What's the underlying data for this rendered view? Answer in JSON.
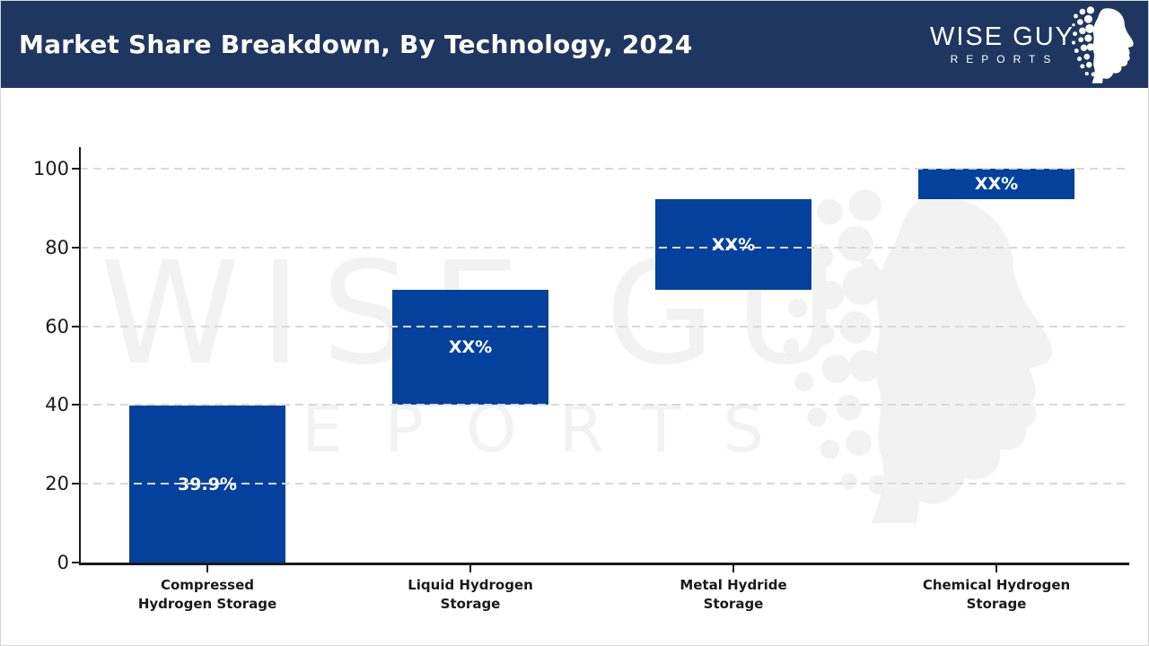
{
  "header": {
    "title": "Market Share Breakdown, By Technology, 2024",
    "brand": {
      "name": "WISE GUY",
      "tagline": "REPORTS"
    }
  },
  "watermark": {
    "line1": "WISE GUY",
    "line2": "REPORTS"
  },
  "colors": {
    "header_bg": "#1f3661",
    "title": "#ffffff",
    "bar": "#04419c",
    "bar_label": "#ffffff",
    "axis": "#1a1a1a",
    "grid": "#d9d9d9",
    "watermark": "#f2f2f2",
    "page_border": "#d6d6d6"
  },
  "chart_data": {
    "type": "bar",
    "subtype": "waterfall",
    "title": "Market Share Breakdown, By Technology, 2024",
    "categories": [
      "Compressed\nHydrogen Storage",
      "Liquid Hydrogen\nStorage",
      "Metal Hydride\nStorage",
      "Chemical Hydrogen\nStorage"
    ],
    "series": [
      {
        "name": "Market share (%)",
        "segments": [
          {
            "from": 0,
            "to": 39.9,
            "label": "39.9%"
          },
          {
            "from": 40.0,
            "to": 69.3,
            "label": "XX%"
          },
          {
            "from": 69.3,
            "to": 92.3,
            "label": "XX%"
          },
          {
            "from": 92.3,
            "to": 100.0,
            "label": "XX%"
          }
        ]
      }
    ],
    "ylim": [
      0,
      100
    ],
    "yticks": [
      0,
      20,
      40,
      60,
      80,
      100
    ],
    "xlabel": "",
    "ylabel": "",
    "grid": {
      "horizontal": true,
      "style": "dashed",
      "above_bars": true
    },
    "legend": null
  }
}
